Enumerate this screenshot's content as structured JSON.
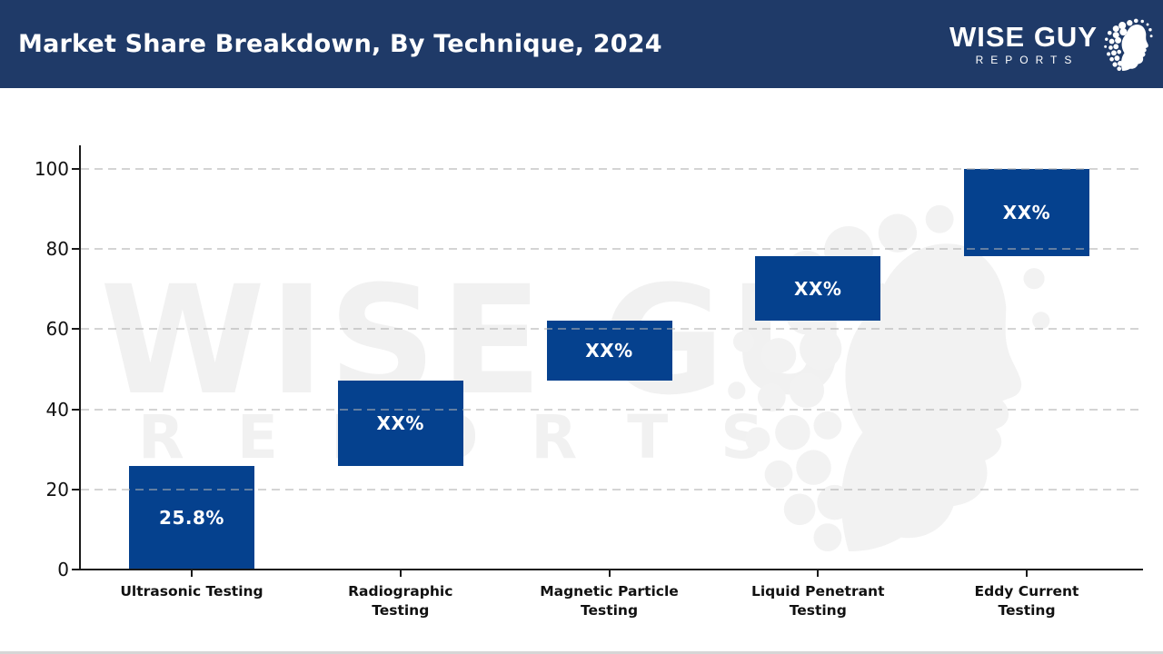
{
  "header": {
    "title": "Market Share Breakdown, By Technique, 2024",
    "logo": {
      "wordmark": "WISE GUY",
      "subtext": "REPORTS"
    }
  },
  "watermark": {
    "wordmark": "WISE GUY",
    "subtext": "REPORTS"
  },
  "chart_data": {
    "type": "bar",
    "subtype": "waterfall",
    "title": "Market Share Breakdown, By Technique, 2024",
    "categories": [
      "Ultrasonic Testing",
      "Radiographic\nTesting",
      "Magnetic Particle\nTesting",
      "Liquid Penetrant\nTesting",
      "Eddy Current\nTesting"
    ],
    "segments": [
      {
        "category": "Ultrasonic Testing",
        "start": 0,
        "end": 25.8,
        "value_label": "25.8%"
      },
      {
        "category": "Radiographic Testing",
        "start": 25.8,
        "end": 47.2,
        "value_label": "XX%"
      },
      {
        "category": "Magnetic Particle Testing",
        "start": 47.2,
        "end": 62.1,
        "value_label": "XX%"
      },
      {
        "category": "Liquid Penetrant Testing",
        "start": 62.1,
        "end": 78.2,
        "value_label": "XX%"
      },
      {
        "category": "Eddy Current Testing",
        "start": 78.2,
        "end": 100,
        "value_label": "XX%"
      }
    ],
    "ylim": [
      0,
      100
    ],
    "yticks": [
      0,
      20,
      40,
      60,
      80,
      100
    ],
    "xlabel": "",
    "ylabel": "",
    "grid": "horizontal-dashed",
    "legend": "none",
    "colors": {
      "bar": "#05418e",
      "header_bg": "#1f3a68",
      "axis": "#1a1a1a",
      "value_label": "#ffffff",
      "watermark": "#f1f1f1"
    }
  }
}
